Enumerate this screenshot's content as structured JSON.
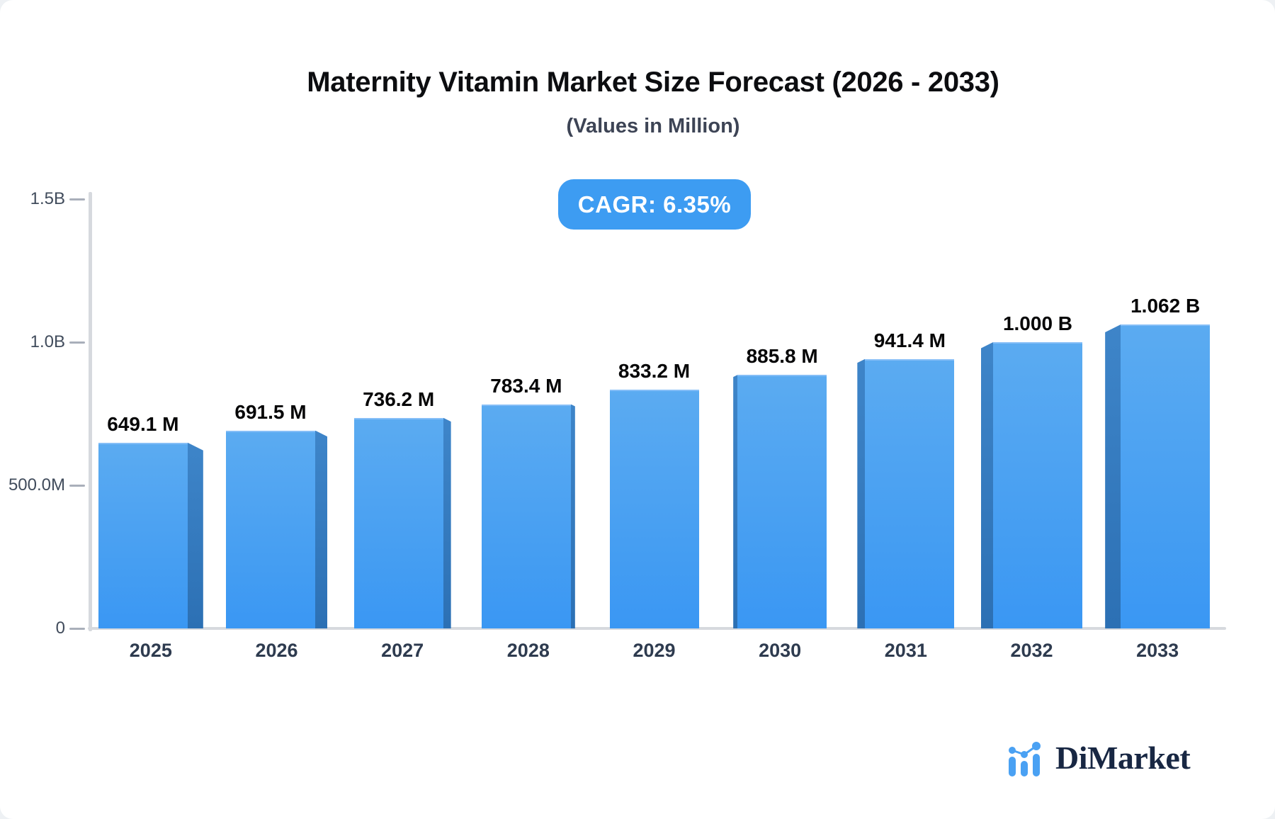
{
  "header": {
    "title": "Maternity Vitamin Market Size Forecast (2026 - 2033)",
    "subtitle": "(Values in Million)",
    "cagr_badge": "CAGR: 6.35%"
  },
  "chart_data": {
    "type": "bar",
    "title": "Maternity Vitamin Market Size Forecast (2026 - 2033)",
    "subtitle": "(Values in Million)",
    "cagr_percent": 6.35,
    "categories": [
      "2025",
      "2026",
      "2027",
      "2028",
      "2029",
      "2030",
      "2031",
      "2032",
      "2033"
    ],
    "values_millions": [
      649.1,
      691.5,
      736.2,
      783.4,
      833.2,
      885.8,
      941.4,
      1000,
      1062
    ],
    "value_labels": [
      "649.1 M",
      "691.5 M",
      "736.2 M",
      "783.4 M",
      "833.2 M",
      "885.8 M",
      "941.4 M",
      "1.000 B",
      "1.062 B"
    ],
    "y_axis": {
      "lim_millions": [
        0,
        1500
      ],
      "ticks": [
        {
          "label": "1.5B",
          "value": 1500
        },
        {
          "label": "1.0B",
          "value": 1000
        },
        {
          "label": "500.0M",
          "value": 500
        },
        {
          "label": "0",
          "value": 0
        }
      ]
    },
    "legend": "none",
    "grid": "off",
    "style": "3d-columns-center-perspective"
  },
  "colors": {
    "accent_blue": "#3d9cf2",
    "bar_front_top": "#5babf1",
    "bar_front_bottom": "#3a97f3",
    "bar_side_top": "#3e85c9",
    "bar_side_bottom": "#2c70b4",
    "axis_line": "#d6d9de",
    "tick_dash": "#a9afba"
  },
  "footer": {
    "logo_text": "DiMarket"
  }
}
